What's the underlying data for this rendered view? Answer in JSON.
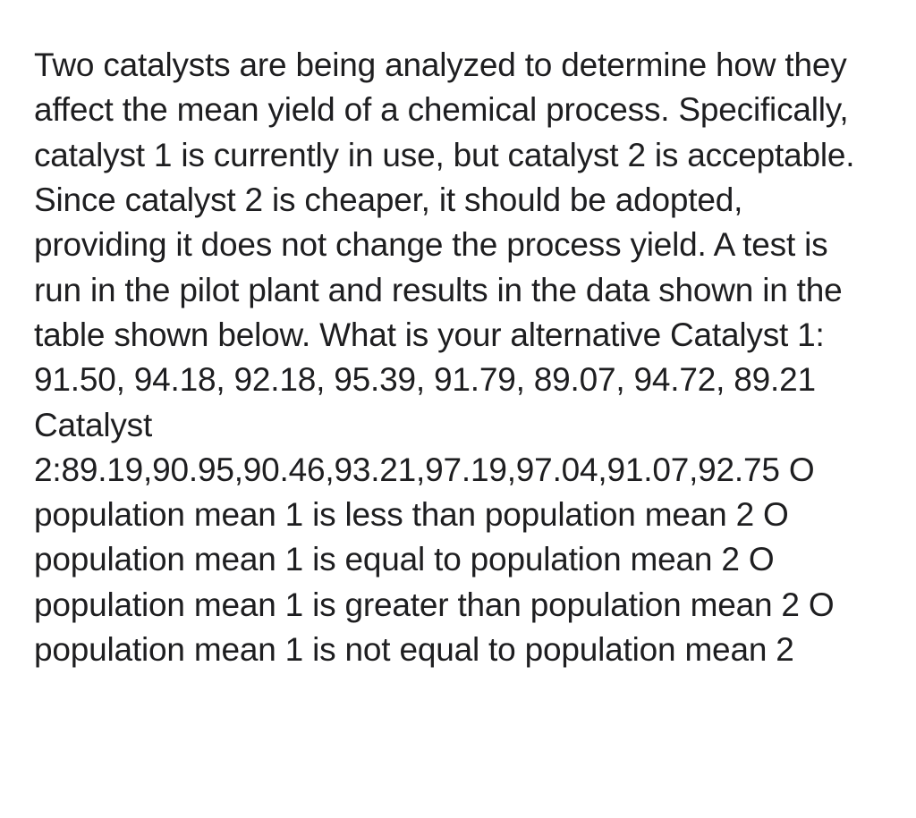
{
  "question": {
    "text": "Two catalysts are being analyzed to determine how they affect the mean yield of a chemical process. Specifically, catalyst 1 is currently in use, but catalyst 2 is acceptable. Since catalyst 2 is cheaper, it should be adopted, providing it does not change the process yield. A test is run in the pilot plant and results in the data shown in the table shown below. What is your alternative Catalyst 1: 91.50, 94.18, 92.18, 95.39, 91.79, 89.07, 94.72, 89.21 Catalyst 2:89.19,90.95,90.46,93.21,97.19,97.04,91.07,92.75 O population mean 1 is less than population mean 2 O population mean 1 is equal to population mean 2 O population mean 1 is greater than population mean 2 O population mean 1 is not equal to population mean 2",
    "text_color": "#1e1e20",
    "background_color": "#ffffff",
    "font_size": 37,
    "catalyst1_values": [
      91.5,
      94.18,
      92.18,
      95.39,
      91.79,
      89.07,
      94.72,
      89.21
    ],
    "catalyst2_values": [
      89.19,
      90.95,
      90.46,
      93.21,
      97.19,
      97.04,
      91.07,
      92.75
    ],
    "options": [
      "population mean 1 is less than population mean 2",
      "population mean 1 is equal to population mean 2",
      "population mean 1 is greater than population mean 2",
      "population mean 1 is not equal to population mean 2"
    ]
  }
}
